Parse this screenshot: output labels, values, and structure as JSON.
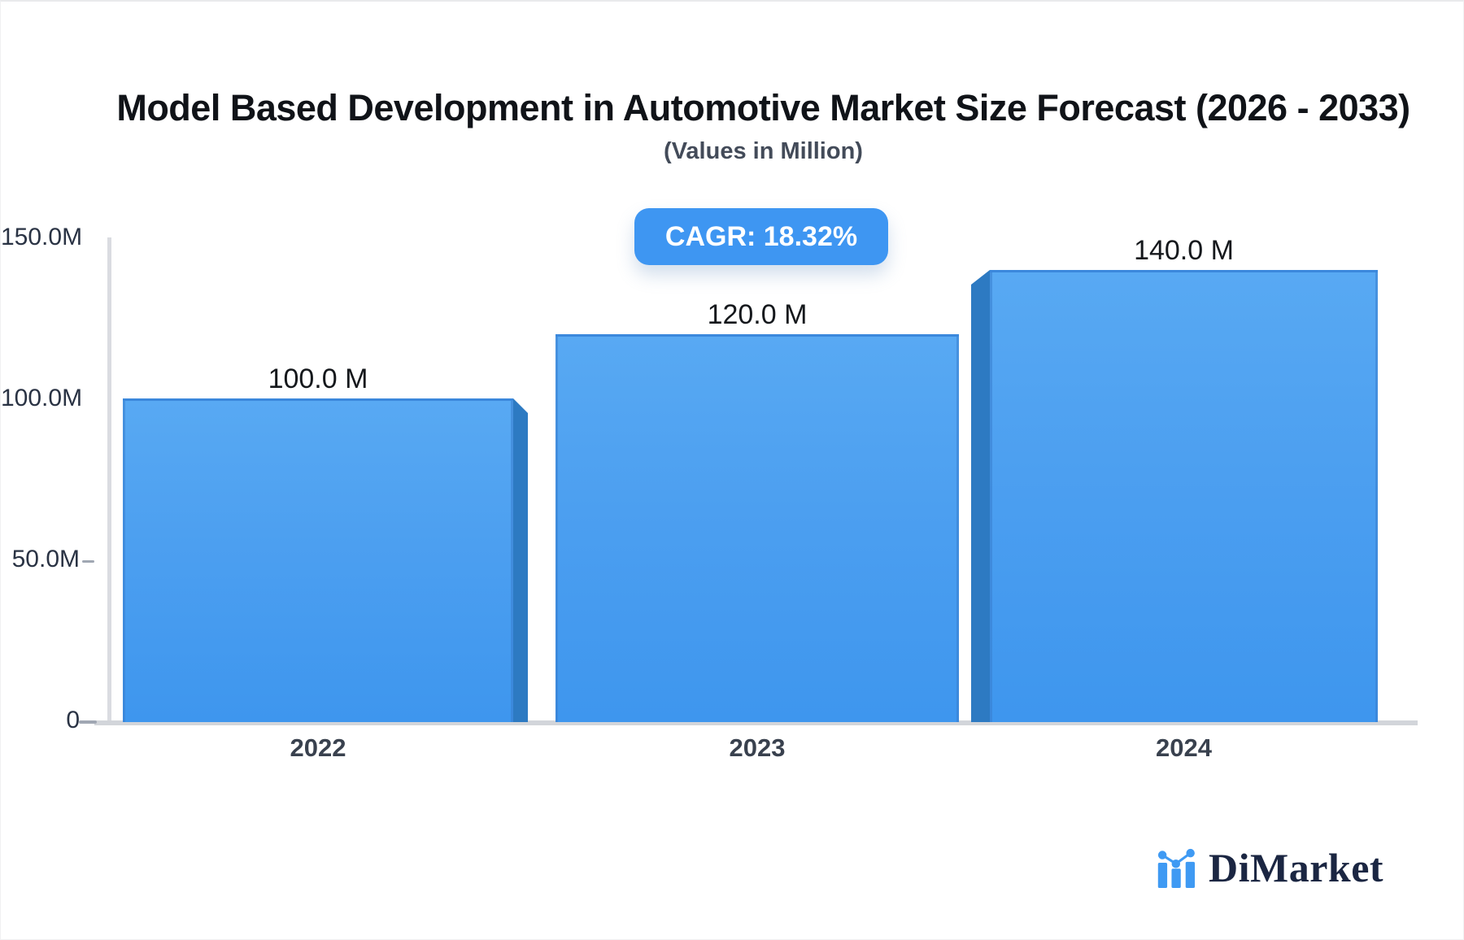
{
  "page": {
    "title": "Model Based Development in Automotive Market Size Forecast (2026 - 2033)",
    "subtitle": "(Values in Million)",
    "cagr_badge": "CAGR: 18.32%"
  },
  "chart_data": {
    "type": "bar",
    "title": "Model Based Development in Automotive Market Size Forecast (2026 - 2033)",
    "subtitle": "(Values in Million)",
    "unit": "Million",
    "categories": [
      "2022",
      "2023",
      "2024"
    ],
    "values": [
      100,
      120,
      140
    ],
    "bar_labels": [
      "100.0 M",
      "120.0 M",
      "140.0 M"
    ],
    "y_ticks": [
      {
        "label": "150.0M",
        "value": 150
      },
      {
        "label": "100.0M",
        "value": 100
      },
      {
        "label": "50.0M",
        "value": 50
      },
      {
        "label": "0",
        "value": 0
      }
    ],
    "ylim": [
      0,
      150
    ],
    "cagr_percent": "18.32%",
    "grid": false,
    "legend_position": "none",
    "colors": {
      "bar_fill_top": "#58a9f3",
      "bar_fill_bottom": "#3e96ee",
      "bar_side_3d": "#2d7ac2",
      "badge_background": "#3e96f2",
      "axis_line": "#d2d5da",
      "title_text": "#101318",
      "label_text": "#2a3344"
    }
  },
  "branding": {
    "logo_text": "DiMarket",
    "logo_icon": "bar-chart-logo-icon",
    "logo_icon_color": "#3f9af3",
    "logo_text_color": "#1b2642"
  }
}
